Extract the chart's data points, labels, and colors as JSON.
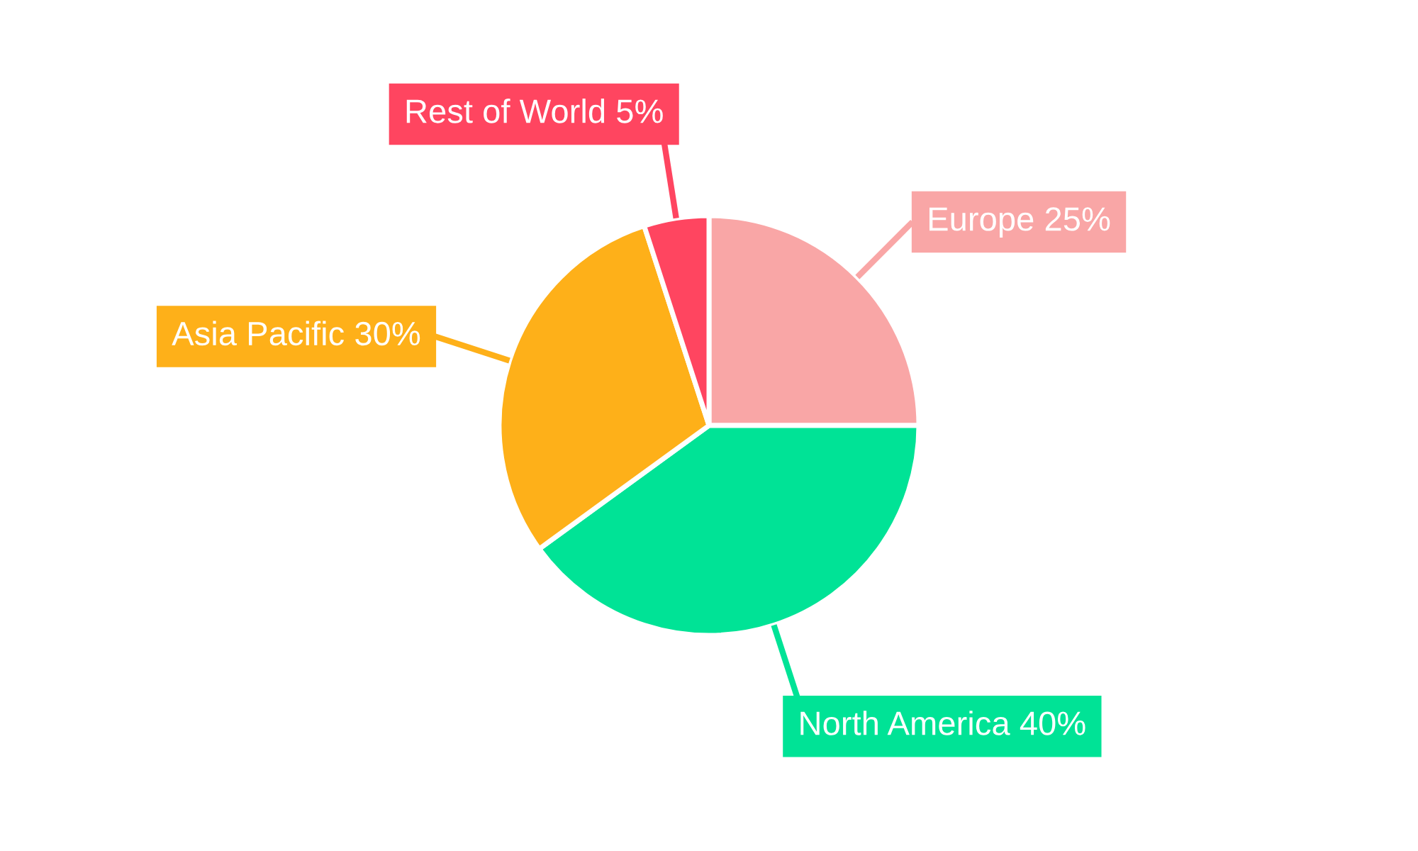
{
  "chart_data": {
    "type": "pie",
    "categories": [
      "Europe",
      "North America",
      "Asia Pacific",
      "Rest of World"
    ],
    "values": [
      25,
      40,
      30,
      5
    ],
    "value_labels": [
      "25%",
      "40%",
      "30%",
      "5%"
    ],
    "colors": [
      "#f9a6a6",
      "#00e396",
      "#feb019",
      "#ff4560"
    ]
  }
}
